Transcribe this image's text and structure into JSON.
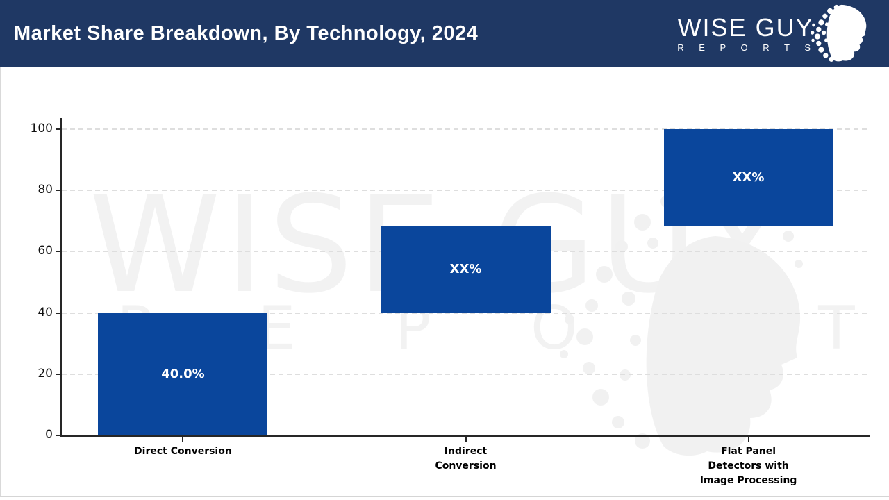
{
  "header": {
    "title": "Market Share Breakdown, By Technology, 2024",
    "logo": {
      "primary": "WISE GUY",
      "secondary": "R E P O R T S"
    }
  },
  "watermark": {
    "primary": "WISE GUY",
    "secondary": "R E P O R T S"
  },
  "colors": {
    "header_bg": "#1f3864",
    "bar": "#0a469c",
    "grid": "#dedede",
    "axis": "#262626",
    "tick_label": "#111111",
    "bar_label": "#ffffff",
    "watermark": "#f2f2f2"
  },
  "chart_data": {
    "type": "bar",
    "subtype": "waterfall",
    "title": "Market Share Breakdown, By Technology, 2024",
    "categories": [
      "Direct Conversion",
      "Indirect\nConversion",
      "Flat Panel\nDetectors with\nImage Processing"
    ],
    "bars": [
      {
        "category": "Direct Conversion",
        "start": 0,
        "end": 40,
        "value": 40.0,
        "label": "40.0%"
      },
      {
        "category": "Indirect Conversion",
        "start": 40,
        "end": 68.5,
        "value": 28.5,
        "label": "XX%"
      },
      {
        "category": "Flat Panel Detectors with Image Processing",
        "start": 68.5,
        "end": 100,
        "value": 31.5,
        "label": "XX%"
      }
    ],
    "ylim": [
      0,
      100
    ],
    "yticks": [
      0,
      20,
      40,
      60,
      80,
      100
    ],
    "xlabel": "",
    "ylabel": "",
    "grid": "horizontal-dashed",
    "legend": "none",
    "bar_color": "#0a469c"
  }
}
